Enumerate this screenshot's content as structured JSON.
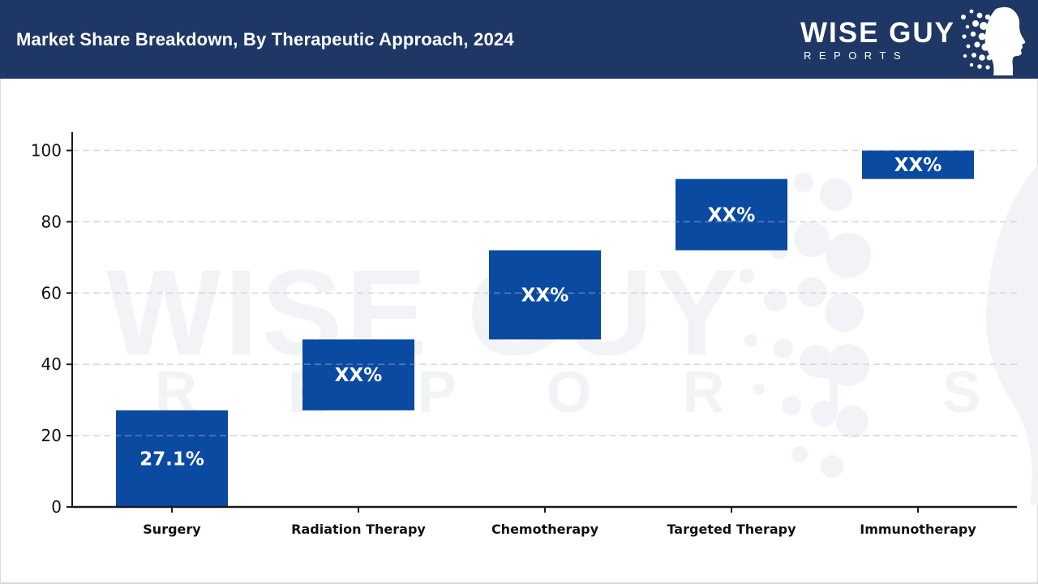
{
  "header": {
    "title": "Market Share Breakdown, By Therapeutic Approach, 2024",
    "bg_color": "#1F3765",
    "logo": {
      "line1": "WISE GUY",
      "line2": "REPORTS"
    }
  },
  "watermark": {
    "line1": "WISE GUY",
    "line2": "R E P O R T S"
  },
  "chart_data": {
    "type": "bar",
    "subtype": "waterfall",
    "title": "Market Share Breakdown, By Therapeutic Approach, 2024",
    "xlabel": "",
    "ylabel": "",
    "categories": [
      "Surgery",
      "Radiation Therapy",
      "Chemotherapy",
      "Targeted Therapy",
      "Immunotherapy"
    ],
    "segments": [
      {
        "category": "Surgery",
        "start": 0,
        "end": 27.1,
        "label": "27.1%"
      },
      {
        "category": "Radiation Therapy",
        "start": 27.1,
        "end": 47,
        "label": "XX%"
      },
      {
        "category": "Chemotherapy",
        "start": 47,
        "end": 72,
        "label": "XX%"
      },
      {
        "category": "Targeted Therapy",
        "start": 72,
        "end": 92,
        "label": "XX%"
      },
      {
        "category": "Immunotherapy",
        "start": 92,
        "end": 100,
        "label": "XX%"
      }
    ],
    "yticks": [
      0,
      20,
      40,
      60,
      80,
      100
    ],
    "ylim": [
      0,
      105
    ],
    "grid": "dashed horizontal, drawn over bars",
    "legend": "none",
    "bar_color": "#0B4AA1",
    "bar_label_color": "#FFFFFF",
    "axis_color": "#1a1a1a",
    "grid_color": "#d8dadc",
    "watermark_color": "#f2f3f6"
  }
}
